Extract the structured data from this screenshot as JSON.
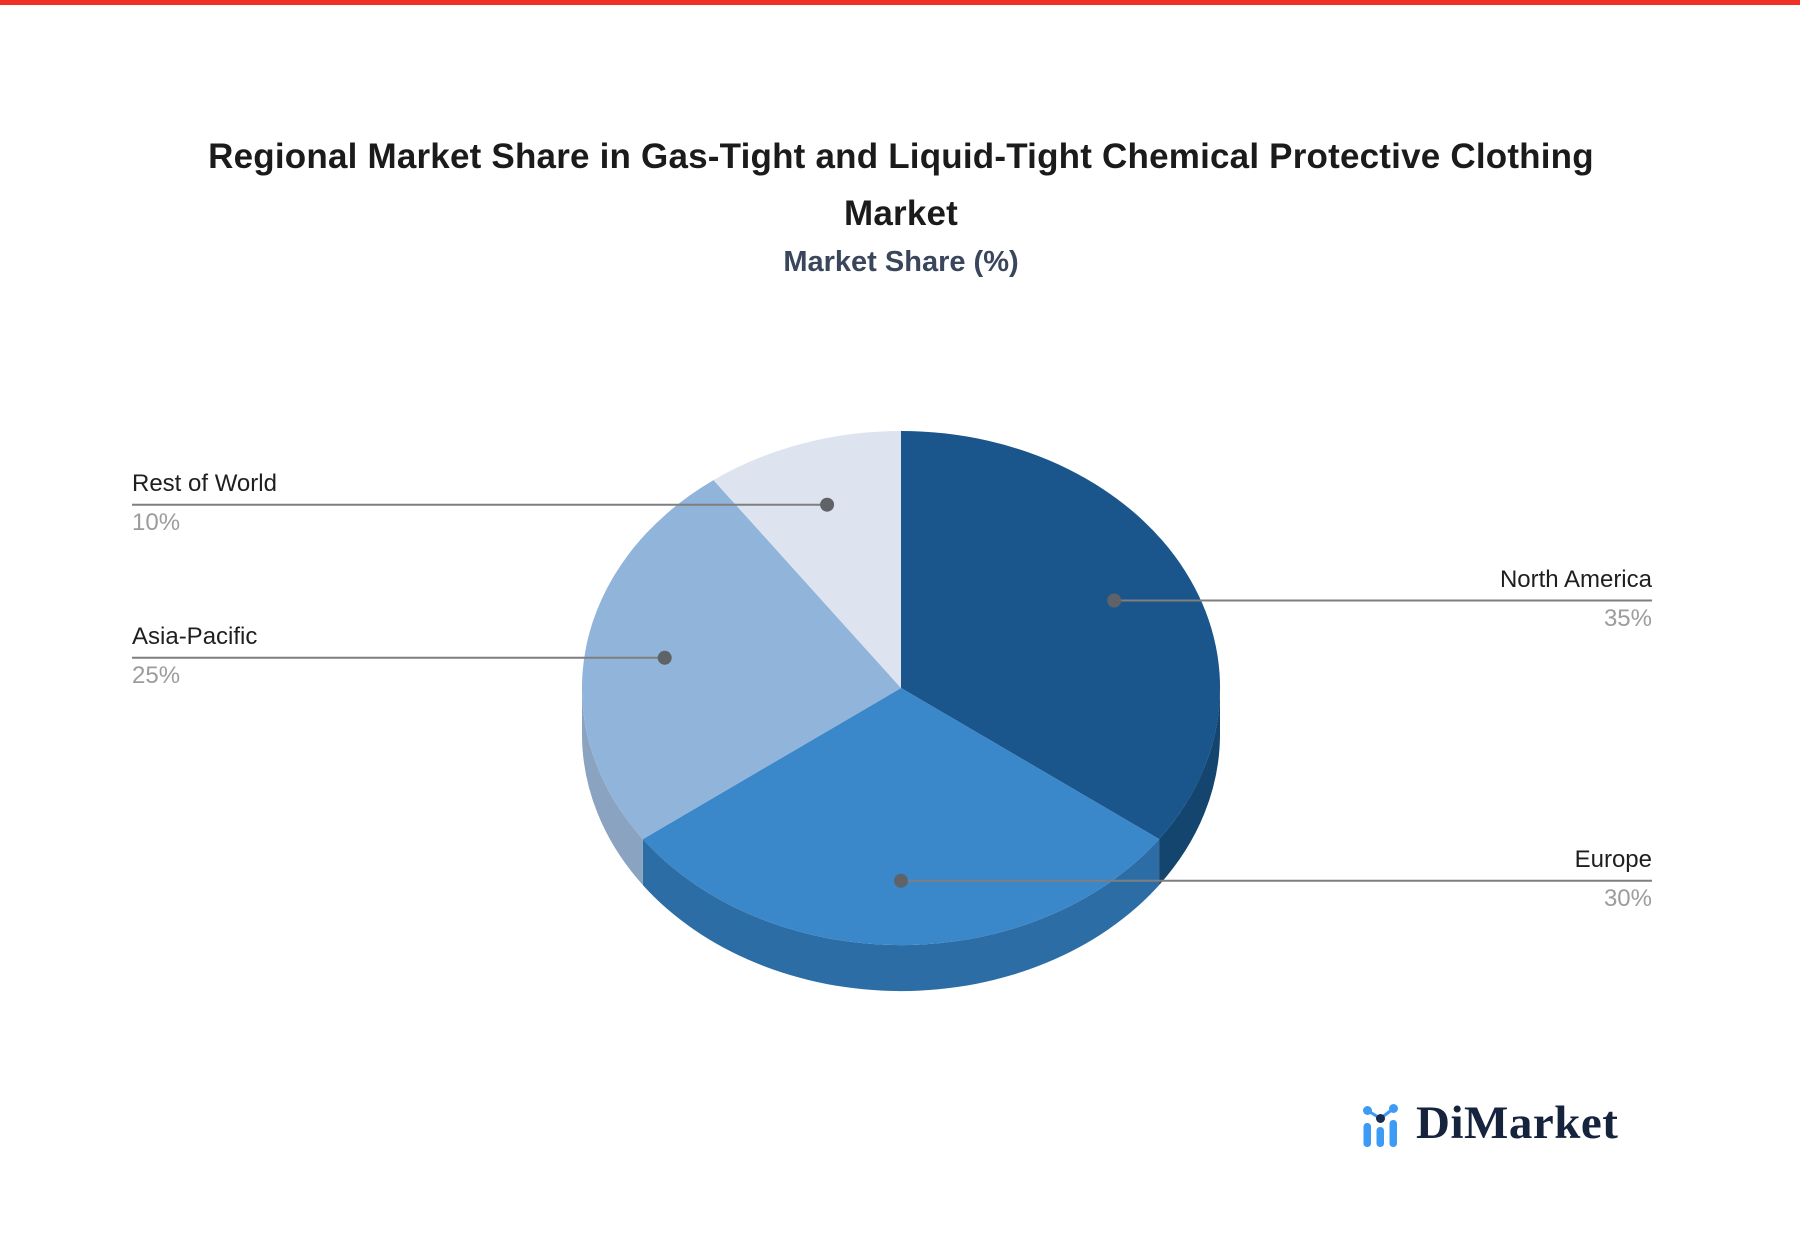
{
  "page": {
    "background": "#FFFFFF",
    "top_bar_color": "#EE3124"
  },
  "header": {
    "title_line1": "Regional Market Share in Gas-Tight and Liquid-Tight Chemical Protective Clothing",
    "title_line2": "Market",
    "subtitle": "Market Share (%)"
  },
  "chart_data": {
    "type": "pie",
    "style": "3d",
    "title": "Regional Market Share in Gas-Tight and Liquid-Tight Chemical Protective Clothing Market",
    "subtitle": "Market Share (%)",
    "unit": "%",
    "legend": "none",
    "start_angle": "12-oclock-clockwise",
    "categories": [
      "North America",
      "Europe",
      "Asia-Pacific",
      "Rest of World"
    ],
    "values": [
      35,
      30,
      25,
      10
    ],
    "pct_labels": [
      "35%",
      "30%",
      "25%",
      "10%"
    ],
    "colors": [
      "#1A568C",
      "#3A87CA",
      "#91B4DA",
      "#DDE4EF"
    ],
    "side_colors": [
      "#14456F",
      "#2D6DA6",
      "#89A3C0",
      "#CBD5E2"
    ],
    "label_side": [
      "right",
      "right",
      "left",
      "left"
    ]
  },
  "labels_style": {
    "name_color": "#1F1F1F",
    "pct_color": "#9C9C9C",
    "line_color": "#7F7F7F",
    "dot_color": "#5F6367"
  },
  "logo": {
    "text": "DiMarket",
    "text_color": "#16233C",
    "icon_blue": "#3D9BF5",
    "icon_navy": "#1A2B4C"
  }
}
